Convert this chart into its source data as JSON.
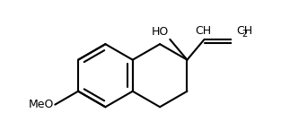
{
  "bg_color": "#ffffff",
  "line_color": "#000000",
  "line_width": 1.5,
  "font_size_main": 9,
  "font_size_sub": 7,
  "text_color": "#000000",
  "fig_width": 3.13,
  "fig_height": 1.55,
  "dpi": 100,
  "ho_label": "HO",
  "meo_label": "MeO",
  "ch_label": "CH",
  "ch2_label": "CH",
  "subscript2": "2"
}
